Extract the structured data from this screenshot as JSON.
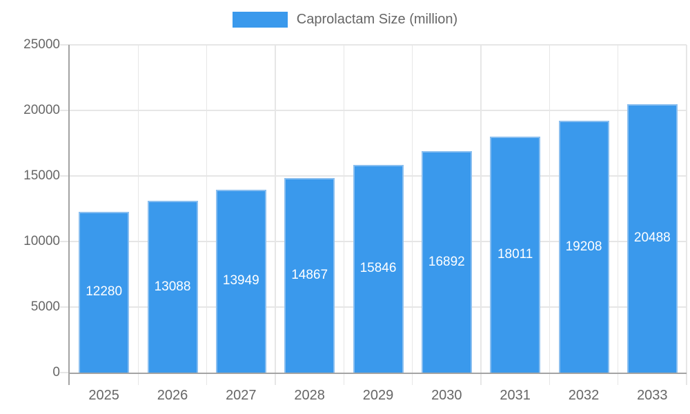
{
  "legend": {
    "label": "Caprolactam Size (million)"
  },
  "chart_data": {
    "type": "bar",
    "title": "Caprolactam Size (million)",
    "series_name": "Caprolactam Size (million)",
    "categories": [
      "2025",
      "2026",
      "2027",
      "2028",
      "2029",
      "2030",
      "2031",
      "2032",
      "2033"
    ],
    "values": [
      12280,
      13088,
      13949,
      14867,
      15846,
      16892,
      18011,
      19208,
      20488
    ],
    "xlabel": "",
    "ylabel": "",
    "ylim": [
      0,
      25000
    ],
    "yticks": [
      0,
      5000,
      10000,
      15000,
      20000,
      25000
    ],
    "grid": true,
    "legend_position": "top",
    "bar_labels_inside": true,
    "colors": {
      "bar": "#3a99ec",
      "bar_border": "#8abff0",
      "grid": "#e6e6e6",
      "axis": "#a3a3a3",
      "tick_text": "#666666",
      "bar_label_text": "#ffffff"
    }
  }
}
